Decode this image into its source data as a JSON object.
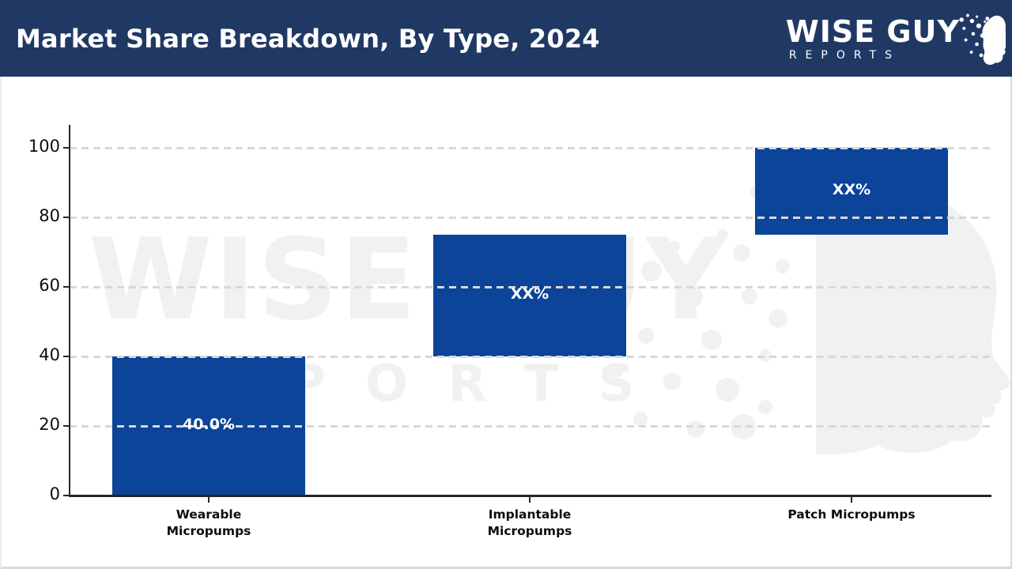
{
  "header": {
    "title": "Market Share Breakdown, By Type, 2024",
    "logo": {
      "wordmark": "WISE GUY",
      "subtitle": "REPORTS"
    }
  },
  "watermark": {
    "wordmark": "WISE GUY",
    "subtitle": "REPORTS"
  },
  "colors": {
    "header_bg": "#203864",
    "bar": "#0b4499",
    "bar_label": "#ffffff",
    "axis": "#262626",
    "gridline": "#d8d8d8",
    "watermark": "#f1f1f1"
  },
  "chart_data": {
    "type": "bar",
    "subtype": "waterfall",
    "title": "Market Share Breakdown, By Type, 2024",
    "categories": [
      "Wearable\nMicropumps",
      "Implantable\nMicropumps",
      "Patch Micropumps"
    ],
    "segments": [
      {
        "category": "Wearable Micropumps",
        "start": 0,
        "end": 40,
        "label": "40.0%"
      },
      {
        "category": "Implantable Micropumps",
        "start": 40,
        "end": 75,
        "label": "XX%"
      },
      {
        "category": "Patch Micropumps",
        "start": 75,
        "end": 100,
        "label": "XX%"
      }
    ],
    "ylim": [
      0,
      100
    ],
    "yticks": [
      0,
      20,
      40,
      60,
      80,
      100
    ],
    "xlabel": "",
    "ylabel": "",
    "grid": "horizontal-dashed",
    "legend": "none"
  }
}
